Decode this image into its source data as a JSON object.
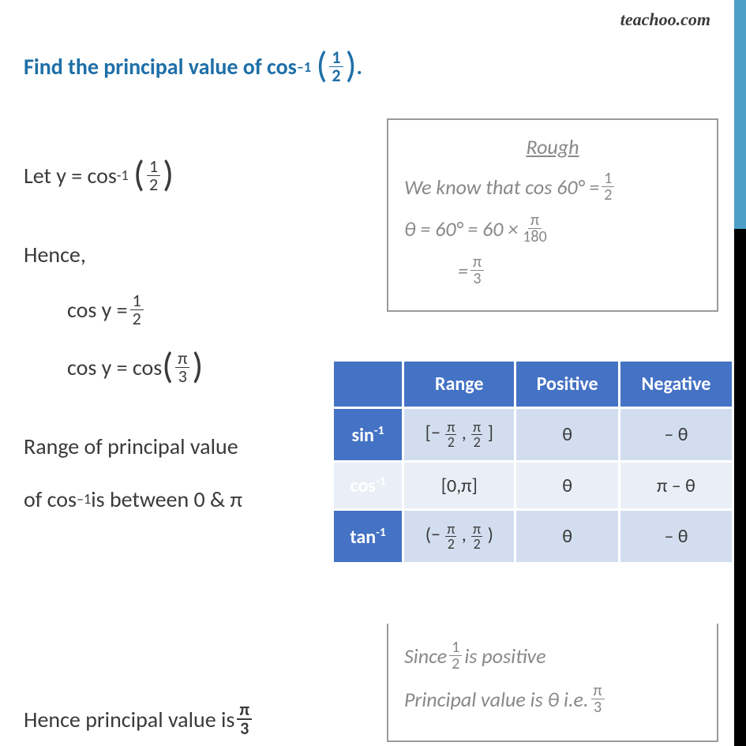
{
  "watermark": "teachoo.com",
  "title_prefix": "Find the principal value of cos",
  "title_sup": "–1",
  "title_frac_num": "1",
  "title_frac_den": "2",
  "title_suffix": ".",
  "left": {
    "l1a": "Let y = cos",
    "l1sup": "-1",
    "l1_num": "1",
    "l1_den": "2",
    "l2": "Hence,",
    "l3a": "cos y = ",
    "l3_num": "1",
    "l3_den": "2",
    "l4a": "cos y = cos ",
    "l4_num": "π",
    "l4_den": "3",
    "l5": "Range of principal value",
    "l6a": "of cos",
    "l6sup": "–1",
    "l6b": " is between 0 & π"
  },
  "final_a": "Hence principal value is ",
  "final_num": "π",
  "final_den": "3",
  "rough": {
    "title": "Rough",
    "r1a": "We know that cos 60° = ",
    "r1_num": "1",
    "r1_den": "2",
    "r2a": "θ = 60° = 60  × ",
    "r2_num": "π",
    "r2_den": "180",
    "r3a": "= ",
    "r3_num": "π",
    "r3_den": "3"
  },
  "table": {
    "colors": {
      "header_bg": "#4472c4",
      "header_fg": "#ffffff",
      "cell_bg_odd": "#eaeff7",
      "cell_bg_even": "#d2deef",
      "cell_fg": "#3a3a3a",
      "border": "#ffffff"
    },
    "headers": [
      "",
      "Range",
      "Positive",
      "Negative"
    ],
    "rows": [
      {
        "func": "sin",
        "sup": "-1",
        "range_open": "[−",
        "range_n1": "π",
        "range_d1": "2",
        "range_mid": ", ",
        "range_n2": "π",
        "range_d2": "2",
        "range_close": "]",
        "pos": "θ",
        "neg": "– θ"
      },
      {
        "func": "cos",
        "sup": "-1",
        "range_plain": "[0,π]",
        "pos": "θ",
        "neg": "π – θ"
      },
      {
        "func": "tan",
        "sup": "-1",
        "range_open": "(−",
        "range_n1": "π",
        "range_d1": "2",
        "range_mid": ", ",
        "range_n2": "π",
        "range_d2": "2",
        "range_close": ")",
        "pos": "θ",
        "neg": "– θ"
      }
    ]
  },
  "note": {
    "n1a": "Since ",
    "n1_num": "1",
    "n1_den": "2",
    "n1b": " is positive",
    "n2a": "Principal value is θ i.e. ",
    "n2_num": "π",
    "n2_den": "3"
  }
}
